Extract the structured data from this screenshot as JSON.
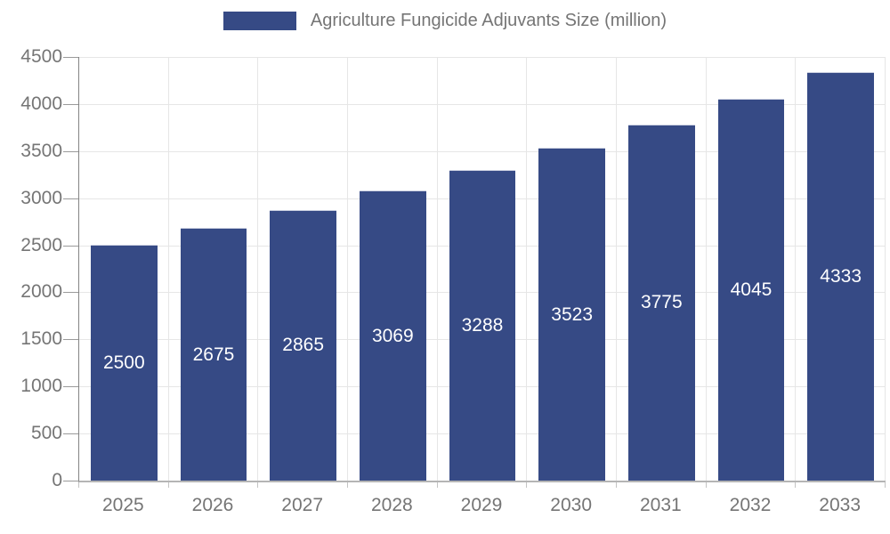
{
  "legend": {
    "label": "Agriculture Fungicide Adjuvants Size (million)"
  },
  "chart_data": {
    "type": "bar",
    "title": "Agriculture Fungicide Adjuvants Size (million)",
    "categories": [
      "2025",
      "2026",
      "2027",
      "2028",
      "2029",
      "2030",
      "2031",
      "2032",
      "2033"
    ],
    "values": [
      2500,
      2675,
      2865,
      3069,
      3288,
      3523,
      3775,
      4045,
      4333
    ],
    "series_name": "Agriculture Fungicide Adjuvants Size (million)",
    "xlabel": "",
    "ylabel": "",
    "ylim": [
      0,
      4500
    ],
    "ytick_step": 500,
    "yticks": [
      0,
      500,
      1000,
      1500,
      2000,
      2500,
      3000,
      3500,
      4000,
      4500
    ],
    "grid": true,
    "legend_position": "top",
    "bar_color": "#364a85",
    "bar_label_color": "#ffffff",
    "grid_color": "#e6e6e6",
    "tick_label_color": "#757575"
  }
}
